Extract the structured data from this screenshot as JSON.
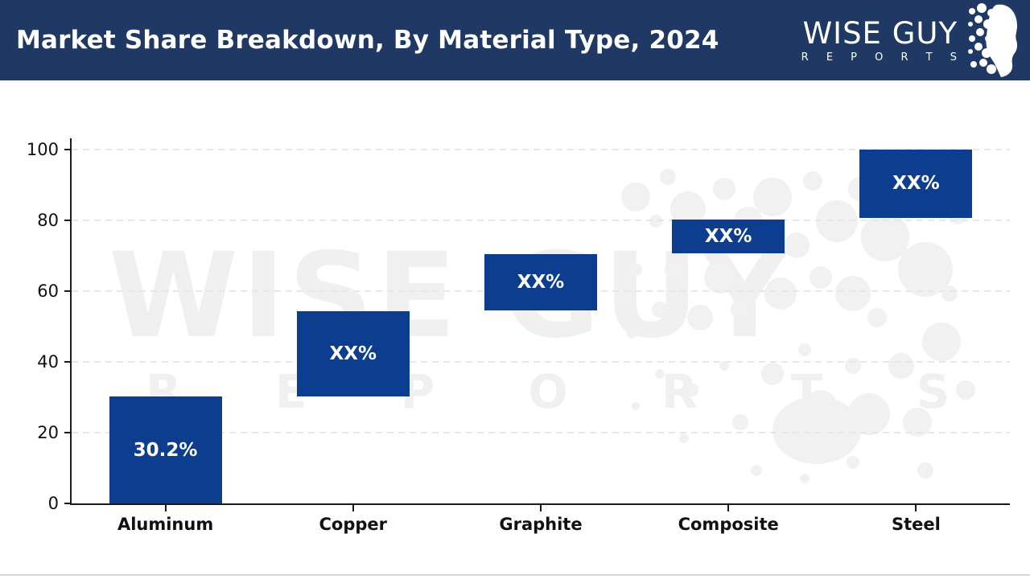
{
  "header": {
    "title": "Market Share Breakdown, By Material Type, 2024",
    "bg_color": "#203864",
    "logo": {
      "line1": "WISE GUY",
      "line2": "R E P O R T S"
    }
  },
  "watermark": {
    "line1": "WISE GUY",
    "line2": "R E P O R T S",
    "color": "#f0f0f0"
  },
  "chart_data": {
    "type": "bar",
    "subtype": "floating-waterfall",
    "title": "Market Share Breakdown, By Material Type, 2024",
    "categories": [
      "Aluminum",
      "Copper",
      "Graphite",
      "Composite",
      "Steel"
    ],
    "segments": [
      {
        "category": "Aluminum",
        "start": 0,
        "end": 30.2,
        "label": "30.2%"
      },
      {
        "category": "Copper",
        "start": 30.2,
        "end": 54.3,
        "label": "XX%"
      },
      {
        "category": "Graphite",
        "start": 54.5,
        "end": 70.5,
        "label": "XX%"
      },
      {
        "category": "Composite",
        "start": 70.7,
        "end": 80.2,
        "label": "XX%"
      },
      {
        "category": "Steel",
        "start": 80.7,
        "end": 100,
        "label": "XX%"
      }
    ],
    "yticks": [
      0,
      20,
      40,
      60,
      80,
      100
    ],
    "ylim": [
      0,
      100
    ],
    "xlabel": "",
    "ylabel": "",
    "grid": "dashed-horizontal",
    "legend": "none",
    "bar_color": "#0c3d8f",
    "bar_label_color": "#ffffff",
    "grid_color": "#e7e7e7",
    "axis_color": "#1a1a1a"
  }
}
